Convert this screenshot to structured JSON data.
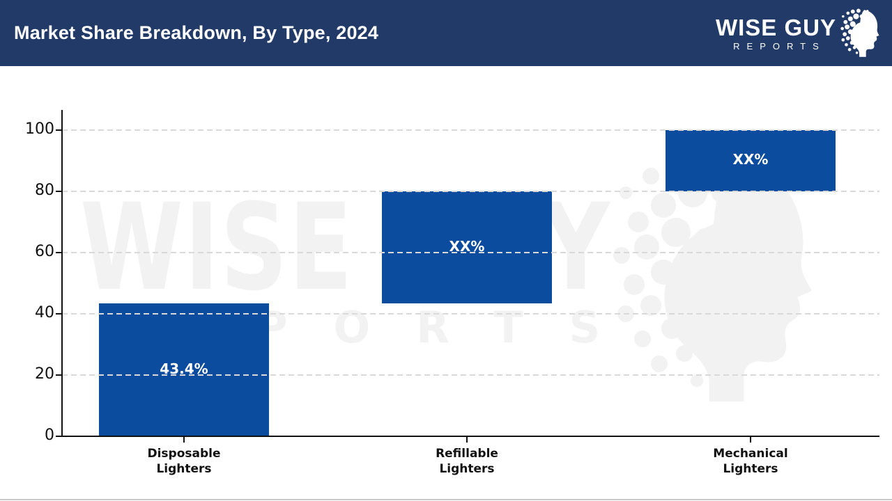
{
  "header": {
    "title": "Market Share Breakdown, By Type, 2024",
    "brand": {
      "name_top": "WISE GUY",
      "name_bottom": "REPORTS"
    }
  },
  "watermark": {
    "text_top": "WISE GUY",
    "text_bottom": "REPORTS"
  },
  "colors": {
    "header_bg": "#223A68",
    "bar": "#0B4C9F",
    "grid": "#D9D9D9",
    "axis": "#111111",
    "watermark": "#F2F2F3",
    "bar_label_text": "#FFFFFF"
  },
  "chart_data": {
    "type": "bar",
    "subtype": "floating-range-bars",
    "title": "Market Share Breakdown, By Type, 2024",
    "categories": [
      "Disposable Lighters",
      "Refillable Lighters",
      "Mechanical Lighters"
    ],
    "bars": [
      {
        "category": "Disposable Lighters",
        "range_start": 0,
        "range_end": 43.4,
        "label": "43.4%"
      },
      {
        "category": "Refillable Lighters",
        "range_start": 43.4,
        "range_end": 80,
        "label": "XX%"
      },
      {
        "category": "Mechanical Lighters",
        "range_start": 80,
        "range_end": 100,
        "label": "XX%"
      }
    ],
    "yticks": [
      0,
      20,
      40,
      60,
      80,
      100
    ],
    "ylim": [
      0,
      106
    ],
    "xlabel": "",
    "ylabel": "",
    "grid": "horizontal-dashed",
    "legend": "none"
  }
}
